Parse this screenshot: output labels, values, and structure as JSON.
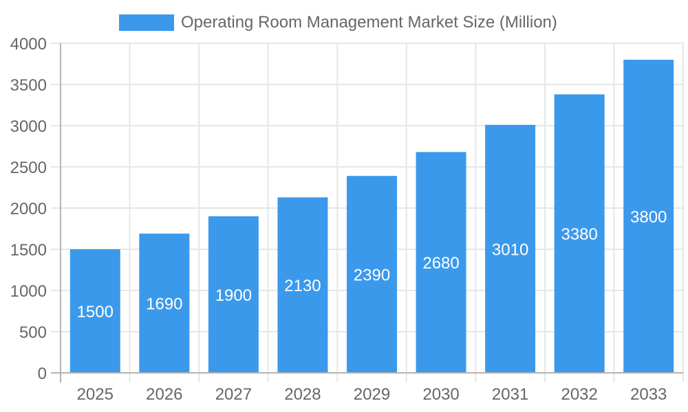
{
  "chart_data": {
    "type": "bar",
    "title": "Operating Room Management Market Size (Million)",
    "categories": [
      "2025",
      "2026",
      "2027",
      "2028",
      "2029",
      "2030",
      "2031",
      "2032",
      "2033"
    ],
    "values": [
      1500,
      1690,
      1900,
      2130,
      2390,
      2680,
      3010,
      3380,
      3800
    ],
    "xlabel": "",
    "ylabel": "",
    "ylim": [
      0,
      4000
    ],
    "yticks": [
      0,
      500,
      1000,
      1500,
      2000,
      2500,
      3000,
      3500,
      4000
    ],
    "grid": true,
    "legend_position": "top",
    "value_labels": "inside-center",
    "bar_color": "#3b99ec",
    "value_label_color": "#ffffff",
    "axis_text_color": "#666666",
    "grid_color": "#e6e6e6",
    "zero_line_color": "#b3b3b3",
    "background_color": "#ffffff"
  }
}
